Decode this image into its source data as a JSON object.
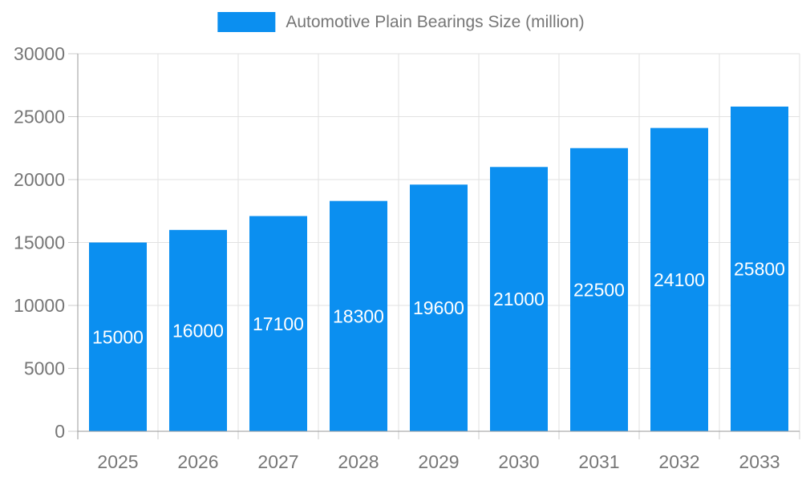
{
  "page": {
    "background": "#ffffff"
  },
  "legend": {
    "label": "Automotive Plain Bearings Size (million)"
  },
  "colors": {
    "bar": "#0b8ff0",
    "bar_label": "#ffffff",
    "axis_text": "#767676",
    "grid_line": "#e2e2e2",
    "tick_line": "#cccccc",
    "axis_line": "#9a9a9a",
    "background": "#ffffff"
  },
  "chart_data": {
    "type": "bar",
    "title": "Automotive Plain Bearings Size (million)",
    "categories": [
      "2025",
      "2026",
      "2027",
      "2028",
      "2029",
      "2030",
      "2031",
      "2032",
      "2033"
    ],
    "values": [
      15000,
      16000,
      17100,
      18300,
      19600,
      21000,
      22500,
      24100,
      25800
    ],
    "series": [
      {
        "name": "Automotive Plain Bearings Size (million)",
        "values": [
          15000,
          16000,
          17100,
          18300,
          19600,
          21000,
          22500,
          24100,
          25800
        ]
      }
    ],
    "xlabel": "",
    "ylabel": "",
    "ylim": [
      0,
      30000
    ],
    "yticks": [
      0,
      5000,
      10000,
      15000,
      20000,
      25000,
      30000
    ],
    "grid": true,
    "legend_position": "top-center",
    "value_labels": "inside-center"
  }
}
